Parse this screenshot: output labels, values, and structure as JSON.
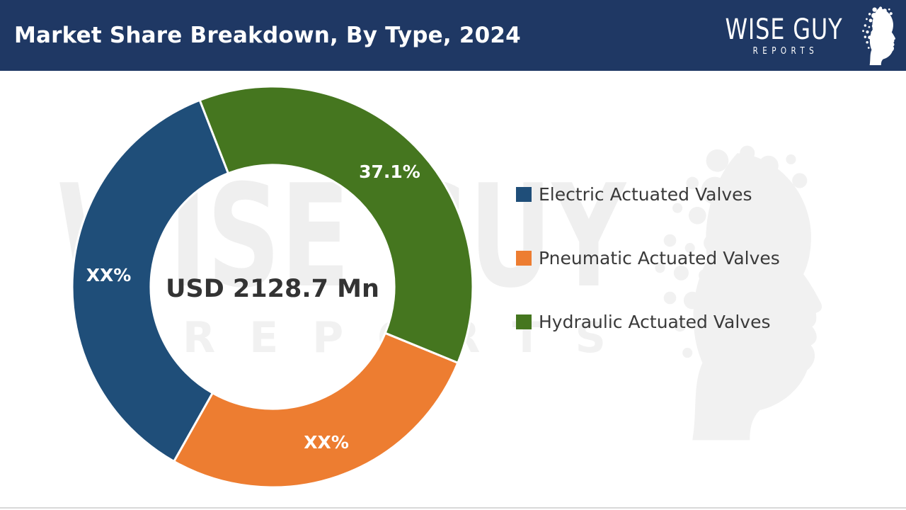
{
  "header": {
    "title": "Market Share Breakdown, By Type, 2024",
    "bg_color": "#1f3864",
    "logo": {
      "name": "WISE GUY",
      "subtitle": "REPORTS"
    }
  },
  "watermark": {
    "line1": "WISE GUY",
    "line2": "REPORTS"
  },
  "chart_data": {
    "type": "pie",
    "variant": "donut",
    "title": "Market Share Breakdown, By Type, 2024",
    "center_label": "USD 2128.7 Mn",
    "legend_position": "right",
    "start_angle_deg": -21.3,
    "sweep_direction": "counterclockwise",
    "inner_radius_ratio": 0.608,
    "label_radius_ratio": 0.82,
    "separator_color": "#ffffff",
    "slice_label_color": "#ffffff",
    "series": [
      {
        "name": "Electric Actuated Valves",
        "display_label": "XX%",
        "value_pct": 35.9,
        "color": "#1f4e79"
      },
      {
        "name": "Pneumatic Actuated Valves",
        "display_label": "XX%",
        "value_pct": 27.0,
        "color": "#ed7d31"
      },
      {
        "name": "Hydraulic Actuated Valves",
        "display_label": "37.1%",
        "value_pct": 37.1,
        "color": "#45761f"
      }
    ]
  },
  "footer": {
    "border_color": "#d9d9d9"
  }
}
